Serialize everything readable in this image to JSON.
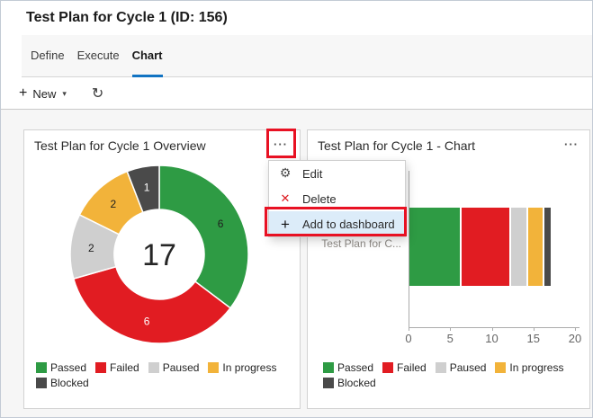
{
  "page_title": "Test Plan for Cycle 1 (ID: 156)",
  "tabs": [
    {
      "label": "Define",
      "active": false
    },
    {
      "label": "Execute",
      "active": false
    },
    {
      "label": "Chart",
      "active": true
    }
  ],
  "toolbar": {
    "new_label": "New"
  },
  "icons": {
    "plus": "+",
    "chevron_down": "▾",
    "refresh": "↻",
    "more": "···"
  },
  "context_menu": {
    "items": [
      {
        "icon": "gear-icon",
        "glyph": "⚙",
        "label": "Edit",
        "highlighted": false
      },
      {
        "icon": "delete-x-icon",
        "glyph": "✕",
        "label": "Delete",
        "highlighted": false
      },
      {
        "icon": "plus-icon",
        "glyph": "+",
        "label": "Add to dashboard",
        "highlighted": true
      }
    ]
  },
  "annotation_color": "#e81123",
  "accent_colors": {
    "tab_underline_blue": "#1173c2",
    "menu_highlight_blue": "#dcecf9"
  },
  "chart_data": [
    {
      "type": "pie",
      "subtype": "donut",
      "title": "Test Plan for Cycle 1 Overview",
      "center_total": "17",
      "series": [
        {
          "name": "Passed",
          "value": 6,
          "color": "#2e9b44",
          "label_color": "#1e1e1e"
        },
        {
          "name": "Failed",
          "value": 6,
          "color": "#e11c22",
          "label_color": "#ffffff"
        },
        {
          "name": "Paused",
          "value": 2,
          "color": "#cfcfcf",
          "label_color": "#1e1e1e"
        },
        {
          "name": "In progress",
          "value": 2,
          "color": "#f2b33a",
          "label_color": "#1e1e1e"
        },
        {
          "name": "Blocked",
          "value": 1,
          "color": "#4a4a4a",
          "label_color": "#ffffff"
        }
      ],
      "legend_position": "bottom"
    },
    {
      "type": "bar",
      "subtype": "stacked-horizontal",
      "title": "Test Plan for Cycle 1 - Chart",
      "category_label": "Test Plan for C...",
      "x_ticks": [
        0,
        5,
        10,
        15,
        20
      ],
      "xlim": [
        0,
        20
      ],
      "series": [
        {
          "name": "Passed",
          "value": 6,
          "color": "#2e9b44"
        },
        {
          "name": "Failed",
          "value": 6,
          "color": "#e11c22"
        },
        {
          "name": "Paused",
          "value": 2,
          "color": "#cfcfcf"
        },
        {
          "name": "In progress",
          "value": 2,
          "color": "#f2b33a"
        },
        {
          "name": "Blocked",
          "value": 1,
          "color": "#4a4a4a"
        }
      ],
      "legend_position": "bottom"
    }
  ]
}
